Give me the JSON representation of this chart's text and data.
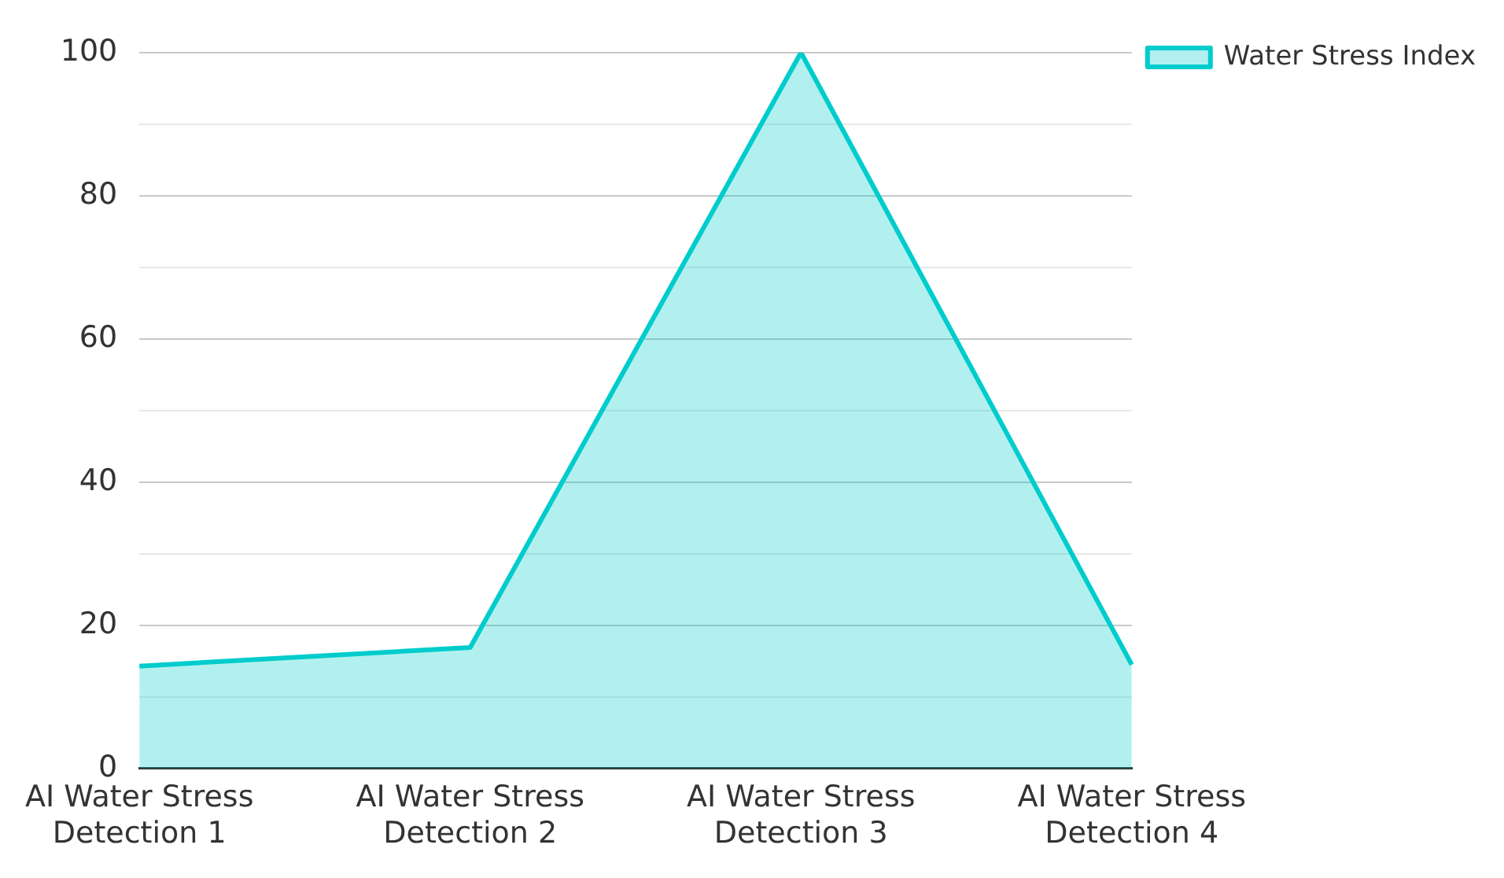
{
  "chart_data": {
    "type": "area",
    "categories": [
      "AI Water Stress Detection 1",
      "AI Water Stress Detection 2",
      "AI Water Stress Detection 3",
      "AI Water Stress Detection 4"
    ],
    "series": [
      {
        "name": "Water Stress Index",
        "color": "#00cccc",
        "values": [
          14.3,
          16.9,
          100,
          14.5
        ]
      }
    ],
    "ylim": [
      0,
      100
    ],
    "yticks": [
      0,
      {
        "value": 10,
        "label": null
      },
      20,
      {
        "value": 30,
        "label": null
      },
      40,
      {
        "value": 50,
        "label": null
      },
      60,
      {
        "value": 70,
        "label": null
      },
      80,
      {
        "value": 90,
        "label": null
      },
      100
    ],
    "grid": "y",
    "legend": "top right"
  }
}
